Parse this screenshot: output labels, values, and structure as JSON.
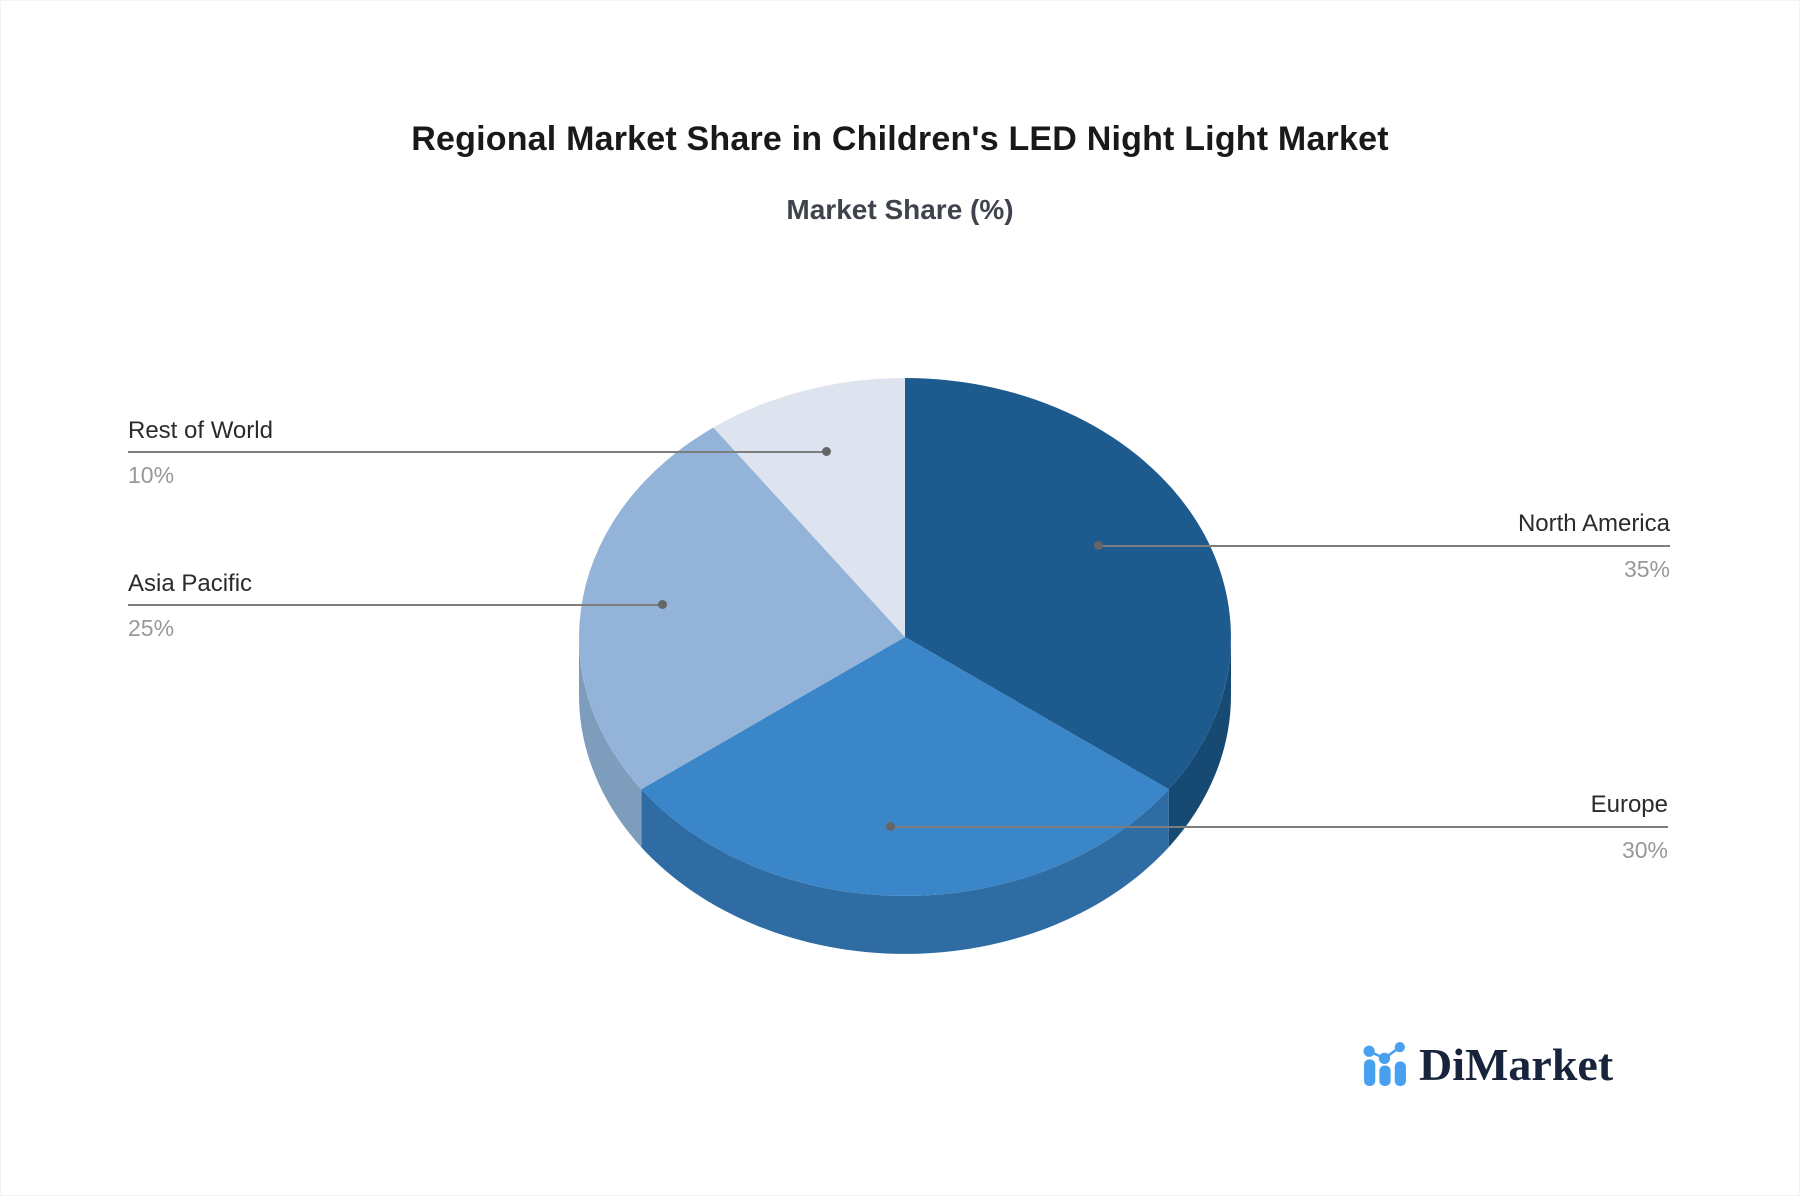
{
  "chart_data": {
    "type": "pie",
    "style": "3d",
    "title": "Regional Market Share in Children's LED Night Light Market",
    "subtitle": "Market Share (%)",
    "unit": "%",
    "direction": "clockwise",
    "start_angle_deg": 0,
    "legend": "callout-labels",
    "slices": [
      {
        "label": "North America",
        "value": 35,
        "display": "35%",
        "color": "#1d5a8e",
        "side_color": "#174a73"
      },
      {
        "label": "Europe",
        "value": 30,
        "display": "30%",
        "color": "#3b86c8",
        "side_color": "#2e6ca3"
      },
      {
        "label": "Asia Pacific",
        "value": 25,
        "display": "25%",
        "color": "#93b4d8",
        "side_color": "#7e9cbb"
      },
      {
        "label": "Rest of World",
        "value": 10,
        "display": "10%",
        "color": "#dde4ef"
      }
    ],
    "label_text_color": "#2b2b2b",
    "value_text_color": "#98989c",
    "leader_line_color": "#7d7d7d"
  },
  "branding": {
    "logo_text": "DiMarket",
    "logo_icon": "bar-chart-trend-icon",
    "logo_text_color": "#17243c",
    "logo_icon_color": "#4aa0f0"
  }
}
